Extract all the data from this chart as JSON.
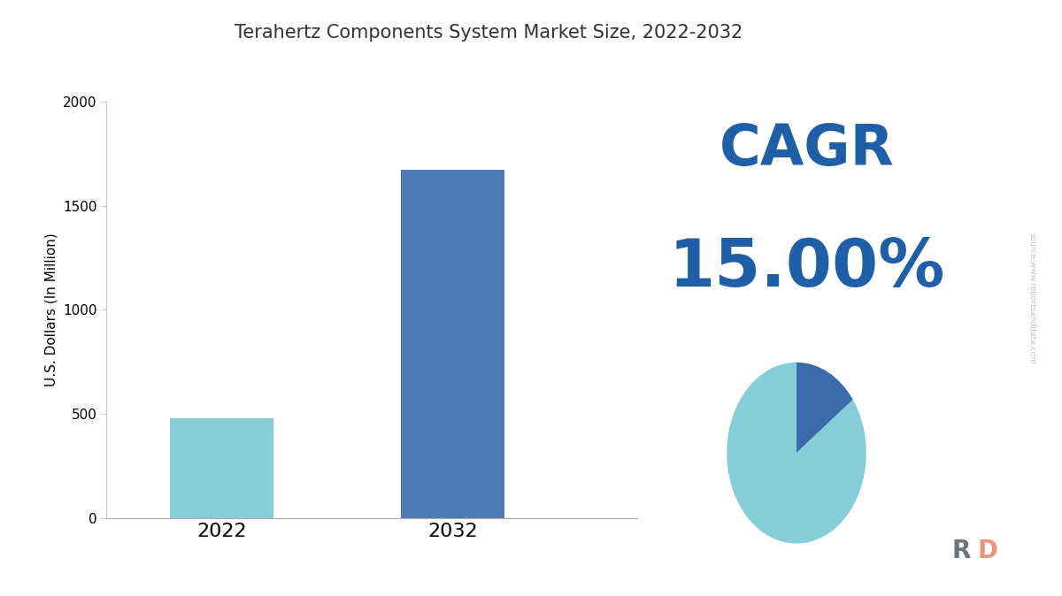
{
  "title": "Terahertz Components System Market Size, 2022-2032",
  "bar_categories": [
    "2022",
    "2032"
  ],
  "bar_values": [
    480,
    1670
  ],
  "bar_colors": [
    "#85CDD9",
    "#4F7BB5"
  ],
  "ylabel": "U.S. Dollars (In Million)",
  "ylim": [
    0,
    2000
  ],
  "yticks": [
    0,
    500,
    1000,
    1500,
    2000
  ],
  "cagr_text": "CAGR",
  "cagr_value": "15.00%",
  "cagr_color": "#1E5FA8",
  "pie_colors": [
    "#3B6BAB",
    "#85CDD9"
  ],
  "pie_values": [
    15,
    85
  ],
  "watermark": "source:www.reportsanddata.com",
  "bg_color": "#FFFFFF",
  "title_fontsize": 15,
  "axis_fontsize": 11,
  "cagr_fontsize_label": 46,
  "cagr_fontsize_value": 54,
  "logo_r_color": "#6B7280",
  "logo_d_color": "#E8967A"
}
